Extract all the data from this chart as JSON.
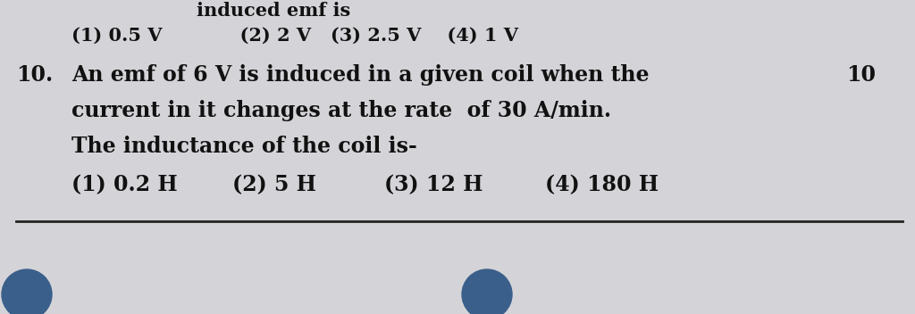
{
  "background_color": "#d4d4d8",
  "top_cut_text": "induced emf is",
  "prev_options": "(1) 0.5 V            (2) 2 V   (3) 2.5 V    (4) 1 V",
  "q_number": "10.",
  "q_line1": "An emf of 6 V is induced in a given coil when the",
  "q_right_number": "10",
  "q_line2": "current in it changes at the rate  of 30 A/min.",
  "q_line3": "The inductance of the coil is-",
  "options_line1": "(1) 0.2 H",
  "options_line2": "(2) 5 H",
  "options_line3": "(3) 12 H",
  "options_line4": "(4) 180 H",
  "text_color": "#111111",
  "font_size_small": 15,
  "font_size_main": 17,
  "line_color": "#222222"
}
